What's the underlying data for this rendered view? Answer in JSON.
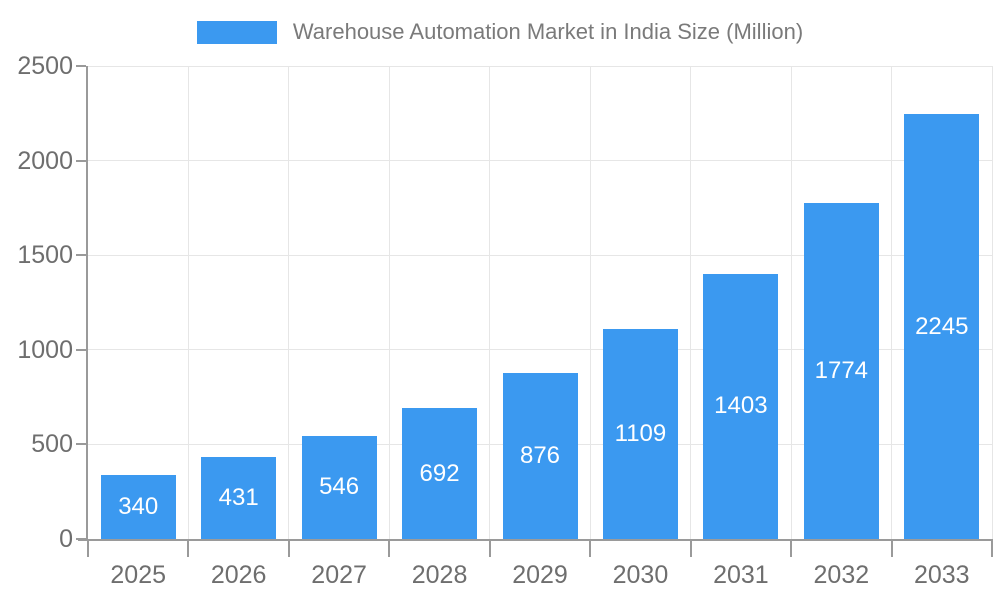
{
  "chart_data": {
    "type": "bar",
    "title": "Warehouse Automation Market in India Size (Million)",
    "categories": [
      "2025",
      "2026",
      "2027",
      "2028",
      "2029",
      "2030",
      "2031",
      "2032",
      "2033"
    ],
    "values": [
      340,
      431,
      546,
      692,
      876,
      1109,
      1403,
      1774,
      2245
    ],
    "series": [
      {
        "name": "Warehouse Automation Market in India Size (Million)",
        "values": [
          340,
          431,
          546,
          692,
          876,
          1109,
          1403,
          1774,
          2245
        ]
      }
    ],
    "xlabel": "",
    "ylabel": "",
    "ylim": [
      0,
      2500
    ],
    "yticks": [
      0,
      500,
      1000,
      1500,
      2000,
      2500
    ],
    "grid": true,
    "legend_position": "top",
    "bar_value_labels": "inside-center",
    "colors": {
      "bar": "#3B99F0",
      "bar_label": "#FFFFFF",
      "axis": "#9A9A9A",
      "grid": "#E6E6E6",
      "tick_label": "#6E6E6E",
      "title": "#7A7A7A",
      "background": "#FFFFFF"
    }
  }
}
